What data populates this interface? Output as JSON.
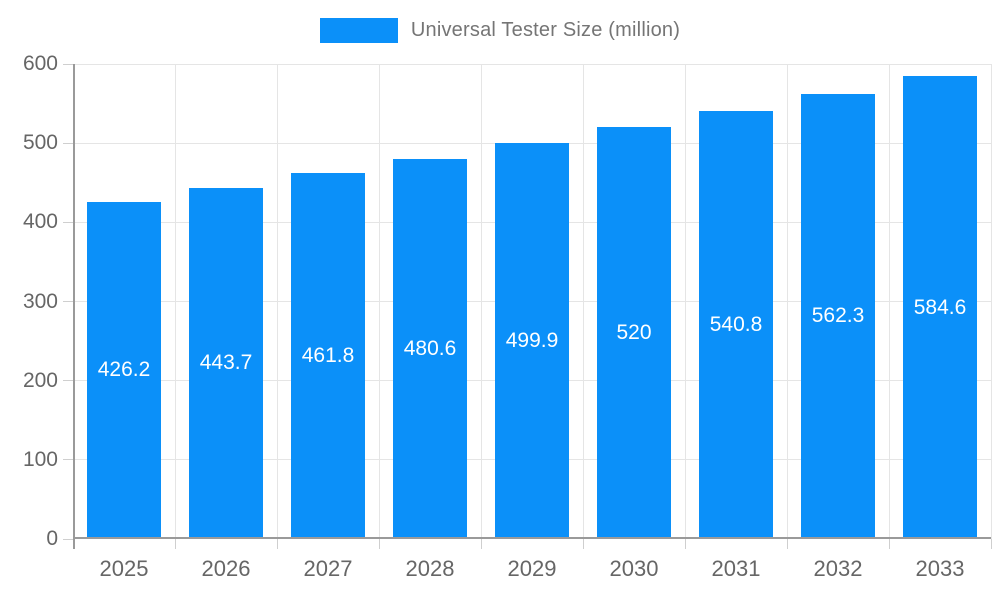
{
  "colors": {
    "bar": "#0b90f9",
    "axis": "#9a9a9a",
    "grid": "#e5e5e5",
    "tick": "#cfcfcf",
    "tick_label": "#666666",
    "value_label": "#ffffff",
    "legend_text": "#757575",
    "background": "#ffffff"
  },
  "legend": {
    "label": "Universal Tester Size (million)"
  },
  "chart_data": {
    "type": "bar",
    "title": "Universal Tester Size (million)",
    "categories": [
      "2025",
      "2026",
      "2027",
      "2028",
      "2029",
      "2030",
      "2031",
      "2032",
      "2033"
    ],
    "values": [
      426.2,
      443.7,
      461.8,
      480.6,
      499.9,
      520,
      540.8,
      562.3,
      584.6
    ],
    "value_labels": [
      "426.2",
      "443.7",
      "461.8",
      "480.6",
      "499.9",
      "520",
      "540.8",
      "562.3",
      "584.6"
    ],
    "xlabel": "",
    "ylabel": "",
    "ylim": [
      0,
      600
    ],
    "ytick_step": 100,
    "ytick_labels": [
      "0",
      "100",
      "200",
      "300",
      "400",
      "500",
      "600"
    ],
    "grid": true,
    "legend_position": "top"
  }
}
